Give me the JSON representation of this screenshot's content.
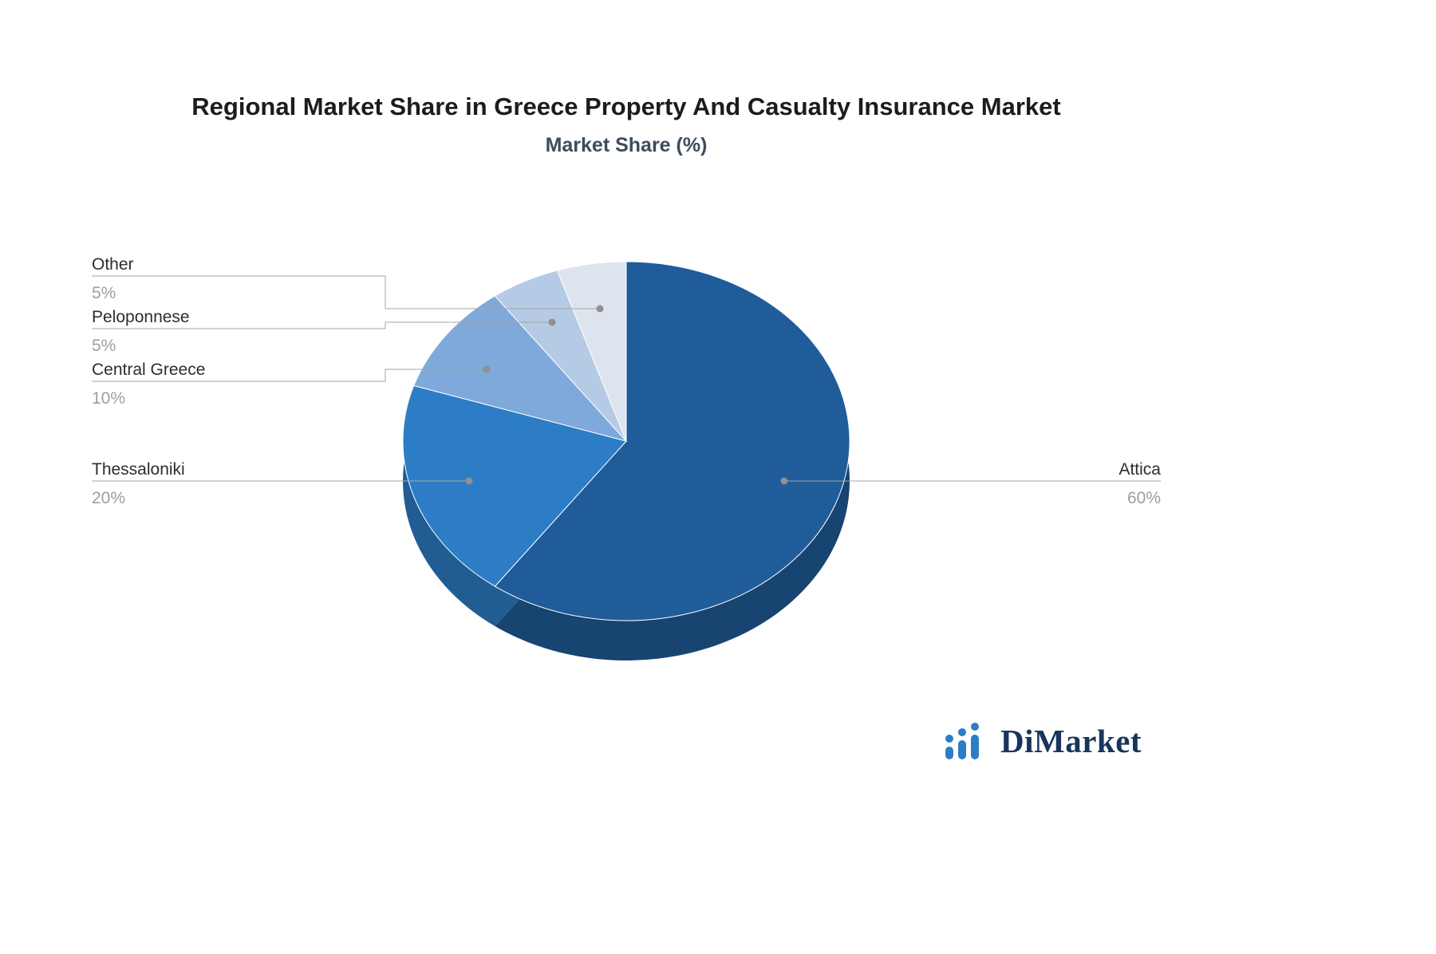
{
  "brand": {
    "name": "DiMarket"
  },
  "chart_data": {
    "type": "pie",
    "title": "Regional Market Share in Greece Property And Casualty Insurance Market",
    "subtitle": "Market Share (%)",
    "labels": [
      "Attica",
      "Thessaloniki",
      "Central Greece",
      "Peloponnese",
      "Other"
    ],
    "values": [
      60,
      20,
      10,
      5,
      5
    ],
    "value_labels": [
      "60%",
      "20%",
      "10%",
      "5%",
      "5%"
    ],
    "colors": [
      "#1f5c99",
      "#2d7dc6",
      "#7fa9da",
      "#b5cbe5",
      "#dde4ee"
    ],
    "start_angle": "top",
    "direction": "clockwise",
    "style": "3d",
    "legend_position": "none",
    "annotations": "callout labels with leader lines and percent values"
  }
}
